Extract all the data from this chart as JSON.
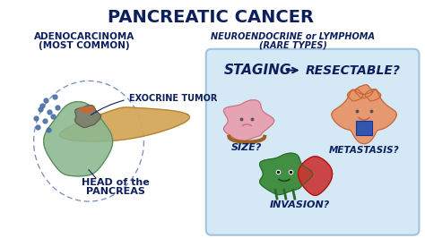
{
  "title": "PANCREATIC CANCER",
  "title_color": "#0d1f5c",
  "title_fontsize": 14,
  "bg_color": "#ffffff",
  "left_header_line1": "ADENOCARCINOMA",
  "left_header_line2": "(MOST COMMON)",
  "right_header_line1": "NEUROENDOCRINE or LYMPHOMA",
  "right_header_line2": "(RARE TYPES)",
  "header_color": "#0d1f5c",
  "header_fontsize": 7.5,
  "exocrine_label": "EXOCRINE TUMOR",
  "head_label_line1": "HEAD of the",
  "head_label_line2": "PANCREAS",
  "staging_text": "STAGING",
  "resectable_text": "RESECTABLE?",
  "size_text": "SIZE?",
  "metastasis_text": "METASTASIS?",
  "invasion_text": "INVASION?",
  "box_color": "#d4e8f5",
  "box_edge_color": "#a0c4dd",
  "staging_color": "#0d1f5c",
  "label_color": "#0d1f5c",
  "dot_color": "#4a6fa5",
  "pancreas_body_color": "#d4a85a",
  "pancreas_head_color": "#8ab890",
  "tumor_color": "#9aaa9a",
  "pink_tumor_color": "#e8a0b0",
  "orange_tumor_color": "#e8956a",
  "green_tumor_color": "#3a8a3a",
  "red_vessel_color": "#cc3333",
  "dashed_circle_color": "#3a5a9a"
}
